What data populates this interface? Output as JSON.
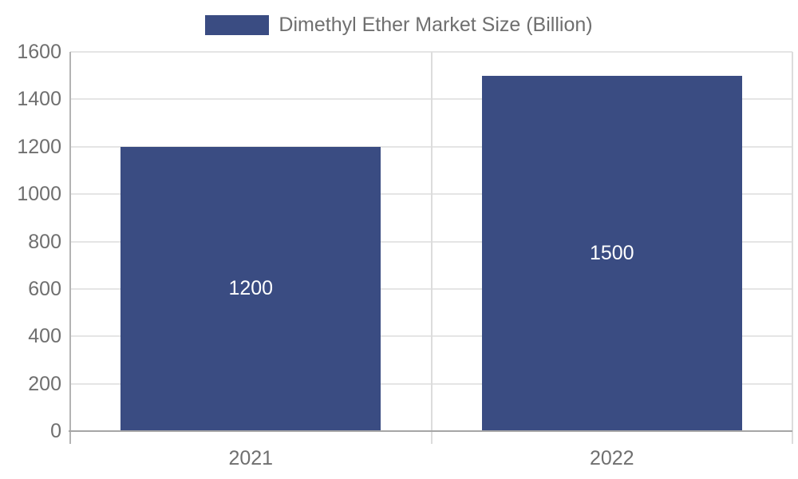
{
  "chart_data": {
    "type": "bar",
    "title": "Dimethyl Ether Market Size (Billion)",
    "categories": [
      "2021",
      "2022"
    ],
    "series": [
      {
        "name": "Dimethyl Ether Market Size (Billion)",
        "values": [
          1200,
          1500
        ]
      }
    ],
    "bar_labels": [
      "1200",
      "1500"
    ],
    "xlabel": "",
    "ylabel": "",
    "ylim": [
      0,
      1600
    ],
    "ytick_step": 200,
    "yticks": [
      0,
      200,
      400,
      600,
      800,
      1000,
      1200,
      1400,
      1600
    ],
    "grid": true,
    "legend_position": "top",
    "colors": {
      "bar": "#3a4c82",
      "bar_label_text": "#ffffff",
      "axis_text": "#6f6f6f",
      "grid_line": "#e5e5e5",
      "grid_line_vertical": "#dcdcdc",
      "axis_line_left": "#b3b3b3",
      "axis_line_bottom": "#a6a6a6",
      "background": "#ffffff"
    }
  }
}
